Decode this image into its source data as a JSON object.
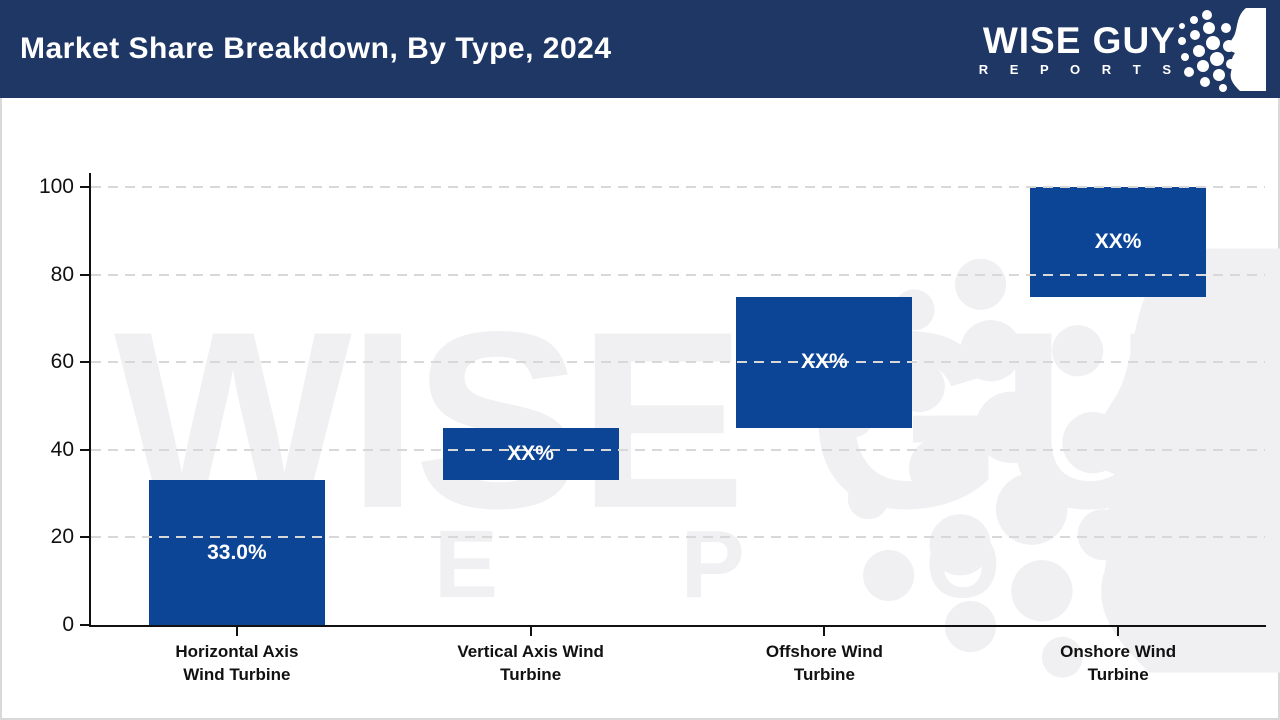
{
  "header": {
    "title": "Market Share Breakdown, By Type, 2024",
    "logo": {
      "line1": "WISE GUY",
      "line2": "R E P O R T S"
    }
  },
  "watermark": {
    "line1": "WISE GUY",
    "line2": "R E P O R T S"
  },
  "chart_data": {
    "type": "bar",
    "subtype": "waterfall",
    "title": "Market Share Breakdown, By Type, 2024",
    "categories": [
      "Horizontal Axis\nWind Turbine",
      "Vertical Axis Wind\nTurbine",
      "Offshore Wind\nTurbine",
      "Onshore Wind\nTurbine"
    ],
    "segments": [
      {
        "start": 0,
        "end": 33,
        "label": "33.0%"
      },
      {
        "start": 33,
        "end": 45,
        "label": "XX%"
      },
      {
        "start": 45,
        "end": 75,
        "label": "XX%"
      },
      {
        "start": 75,
        "end": 100,
        "label": "XX%"
      }
    ],
    "ylim": [
      0,
      100
    ],
    "yticks": [
      0,
      20,
      40,
      60,
      80,
      100
    ],
    "grid": "horizontal-dashed",
    "legend": "none",
    "bar_color": "#0d4596",
    "bar_label_color": "#ffffff"
  },
  "colors": {
    "header_bg": "#1f3765",
    "bar": "#0d4596",
    "grid": "#d8d8d8",
    "axis": "#111111",
    "watermark": "#f0f0f2",
    "border": "#d9d9d9"
  }
}
